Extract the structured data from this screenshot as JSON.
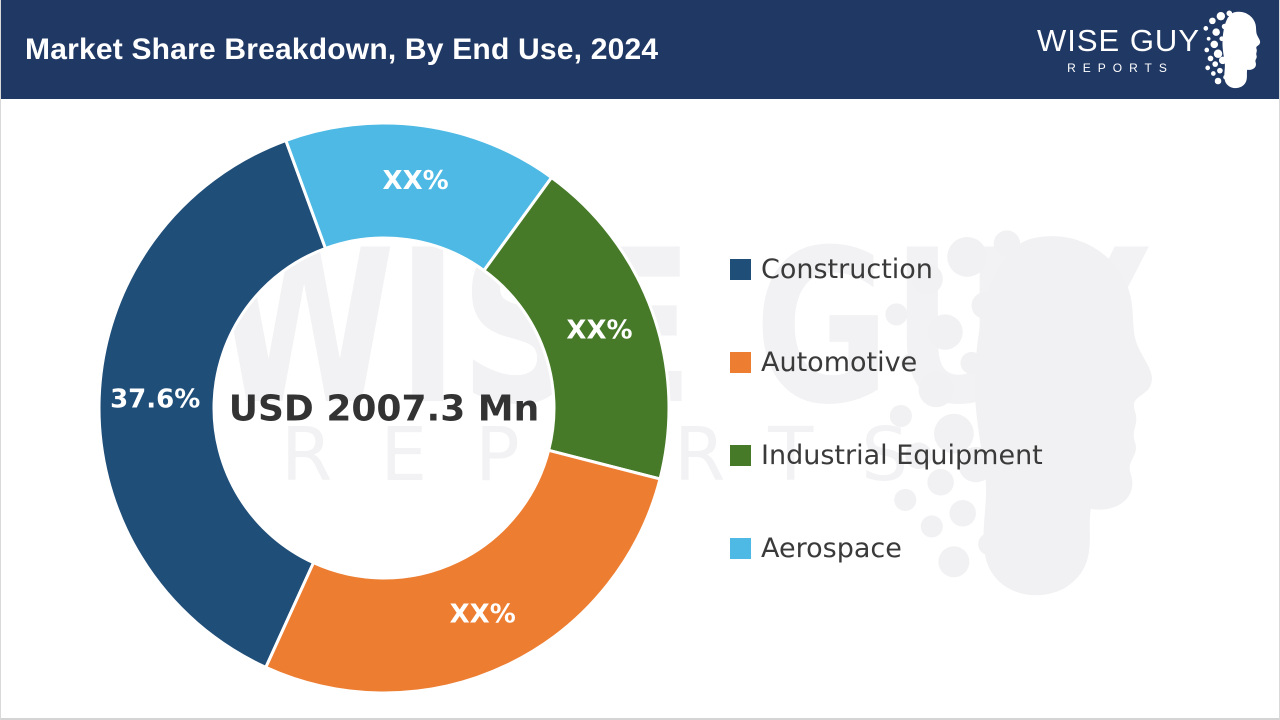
{
  "header": {
    "title": "Market Share Breakdown, By End Use, 2024",
    "bg_color": "#203864",
    "logo": {
      "line1": "WISE GUY",
      "line2": "REPORTS"
    }
  },
  "watermark": {
    "line1": "WISE GUY",
    "line2": "REPORTS"
  },
  "chart_data": {
    "type": "pie",
    "subtype": "donut",
    "title": "Market Share Breakdown, By End Use, 2024",
    "center_label": "USD 2007.3 Mn",
    "start_angle_clockwise_from_top_deg": 204.5,
    "legend_position": "right",
    "segments": [
      {
        "name": "Construction",
        "color": "#1F4E79",
        "value_pct": 37.6,
        "label": "37.6%"
      },
      {
        "name": "Aerospace",
        "color": "#4DB9E4",
        "value_pct": 15.6,
        "label": "XX%"
      },
      {
        "name": "Industrial Equipment",
        "color": "#467A28",
        "value_pct": 19.0,
        "label": "XX%"
      },
      {
        "name": "Automotive",
        "color": "#ED7D31",
        "value_pct": 27.8,
        "label": "XX%"
      }
    ],
    "legend_order": [
      "Construction",
      "Automotive",
      "Industrial Equipment",
      "Aerospace"
    ]
  }
}
